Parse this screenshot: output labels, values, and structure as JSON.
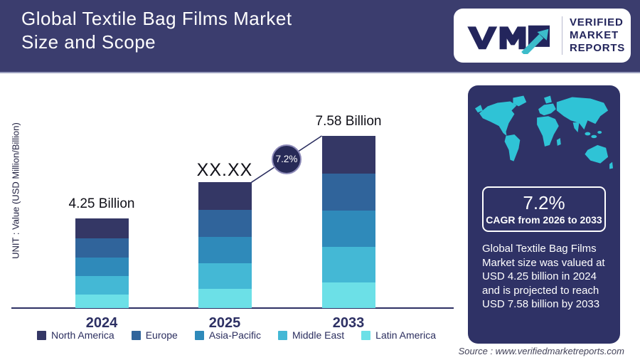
{
  "header": {
    "title": "Global Textile Bag Films Market\nSize and Scope",
    "logo": {
      "mark": "VMR",
      "brand_lines": [
        "VERIFIED",
        "MARKET",
        "REPORTS"
      ]
    }
  },
  "chart_data": {
    "type": "bar",
    "subtype": "stacked",
    "title": "Global Textile Bag Films Market Size and Scope",
    "ylabel": "UNIT : Value (USD Million/Billion)",
    "categories": [
      "2024",
      "2025",
      "2033"
    ],
    "bar_value_labels": [
      "4.25 Billion",
      "XX.XX",
      "7.58 Billion"
    ],
    "totals_usd_billion": [
      4.25,
      null,
      7.58
    ],
    "relative_heights": [
      0.52,
      0.73,
      1.0
    ],
    "segment_shares": [
      0.22,
      0.215,
      0.21,
      0.205,
      0.15
    ],
    "series": [
      {
        "name": "North America",
        "color": "#343765"
      },
      {
        "name": "Europe",
        "color": "#30649b"
      },
      {
        "name": "Asia-Pacific",
        "color": "#2f8aba"
      },
      {
        "name": "Middle East",
        "color": "#44b8d5"
      },
      {
        "name": "Latin America",
        "color": "#6ce0e7"
      }
    ],
    "annotation": {
      "label": "7.2%",
      "connects": [
        "2025",
        "2033"
      ]
    },
    "legend_position": "bottom",
    "grid": false
  },
  "sidebar": {
    "cagr_value": "7.2%",
    "cagr_caption": "CAGR from 2026 to 2033",
    "description": "Global Textile Bag Films Market size was valued at USD 4.25 billion in 2024 and is projected to reach USD 7.58 billion by 2033"
  },
  "footer": {
    "source": "Source : www.verifiedmarketreports.com"
  },
  "colors": {
    "header_bg": "#3b3d6e",
    "sidebar_bg": "#2f3266",
    "map_fill": "#2fc3d6",
    "axis_navy": "#2d3064",
    "circle_bg": "#272a57",
    "logo_navy": "#23255c",
    "logo_teal": "#3cbcca"
  }
}
